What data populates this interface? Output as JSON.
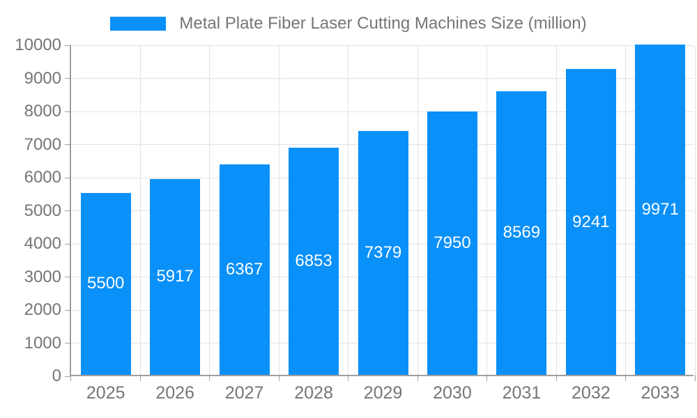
{
  "chart_data": {
    "type": "bar",
    "title": "Metal Plate Fiber Laser Cutting Machines Size (million)",
    "categories": [
      "2025",
      "2026",
      "2027",
      "2028",
      "2029",
      "2030",
      "2031",
      "2032",
      "2033"
    ],
    "values": [
      5500,
      5917,
      6367,
      6853,
      7379,
      7950,
      8569,
      9241,
      9971
    ],
    "xlabel": "",
    "ylabel": "",
    "ylim": [
      0,
      10000
    ],
    "ytick_step": 1000,
    "grid": true,
    "legend_position": "top",
    "colors": {
      "bar": "#0990f9",
      "grid": "#e2e2e2",
      "axis": "#9e9e9e",
      "tick_text": "#757575",
      "legend_text": "#757575",
      "bar_value_text": "#ffffff"
    }
  }
}
